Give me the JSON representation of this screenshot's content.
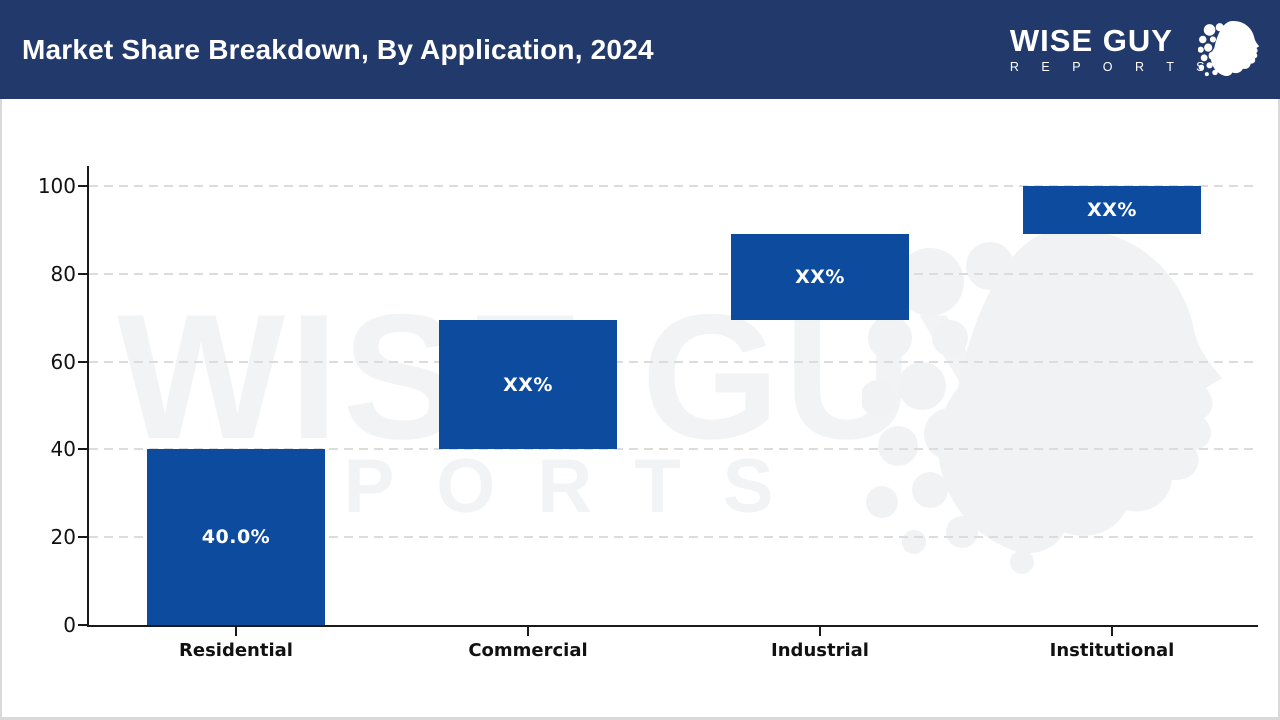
{
  "header": {
    "title": "Market Share Breakdown, By Application, 2024",
    "logo": {
      "line1": "WISE GUY",
      "line2": "R E P O R T S"
    }
  },
  "watermark": {
    "line1": "WISE GUY",
    "line2": "REPORTS"
  },
  "chart_data": {
    "type": "bar",
    "subtype": "waterfall",
    "title": "Market Share Breakdown, By Application, 2024",
    "categories": [
      "Residential",
      "Commercial",
      "Industrial",
      "Institutional"
    ],
    "segments": [
      {
        "category": "Residential",
        "label": "40.0%",
        "start": 0,
        "end": 40
      },
      {
        "category": "Commercial",
        "label": "XX%",
        "start": 40,
        "end": 69.4
      },
      {
        "category": "Industrial",
        "label": "XX%",
        "start": 69.4,
        "end": 89
      },
      {
        "category": "Institutional",
        "label": "XX%",
        "start": 89,
        "end": 100
      }
    ],
    "xlabel": "",
    "ylabel": "",
    "yticks": [
      0,
      20,
      40,
      60,
      80,
      100
    ],
    "ylim": [
      0,
      104
    ],
    "grid": {
      "horizontal": true,
      "style": "dashed"
    },
    "legend": "none"
  },
  "colors": {
    "header_bg": "#22396B",
    "bar": "#0D4B9F",
    "bar_label": "#FFFFFF",
    "axis": "#1A1A1A",
    "gridline": "#DCDCDC",
    "watermark": "#F2F3F5",
    "page_border": "#D9D9D9"
  }
}
